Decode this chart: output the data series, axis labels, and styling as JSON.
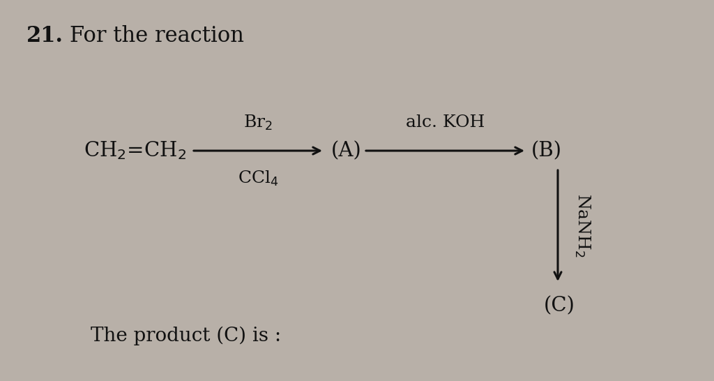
{
  "background_color": "#b8b0a8",
  "question_number": "21.",
  "question_text": "For the reaction",
  "reactant": "CH$_2$=CH$_2$",
  "reagent1_top": "Br$_2$",
  "reagent1_bottom": "CCl$_4$",
  "intermediate": "(A)",
  "reagent2": "alc. KOH",
  "product_B": "(B)",
  "reagent3": "NaNH$_2$",
  "product_C": "(C)",
  "bottom_text": "The product (C) is :",
  "font_color": "#111111",
  "font_size_question": 22,
  "font_size_main": 21,
  "font_size_reagent": 18,
  "font_size_bottom": 20,
  "arrow_color": "#111111"
}
